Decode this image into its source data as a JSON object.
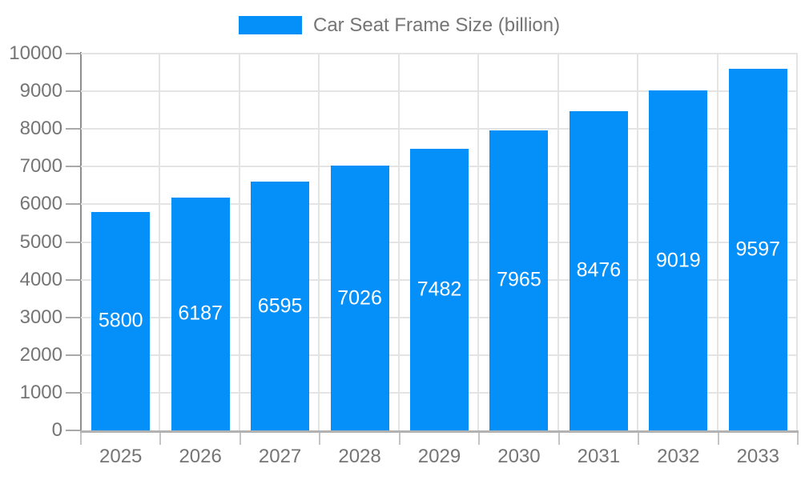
{
  "chart_data": {
    "type": "bar",
    "title": "Car Seat Frame Size (billion)",
    "categories": [
      "2025",
      "2026",
      "2027",
      "2028",
      "2029",
      "2030",
      "2031",
      "2032",
      "2033"
    ],
    "values": [
      5800,
      6187,
      6595,
      7026,
      7482,
      7965,
      8476,
      9019,
      9597
    ],
    "xlabel": "",
    "ylabel": "",
    "ylim": [
      0,
      10000
    ],
    "y_ticks": [
      0,
      1000,
      2000,
      3000,
      4000,
      5000,
      6000,
      7000,
      8000,
      9000,
      10000
    ],
    "grid": true,
    "legend_position": "top-center",
    "value_labels": "inside-center-white",
    "colors": {
      "bar": "#0590f9",
      "value_label": "#ffffff",
      "axis_label": "#757575",
      "gridline": "#e4e4e4",
      "axis_line": "#8e8e8e",
      "background": "#ffffff"
    }
  }
}
